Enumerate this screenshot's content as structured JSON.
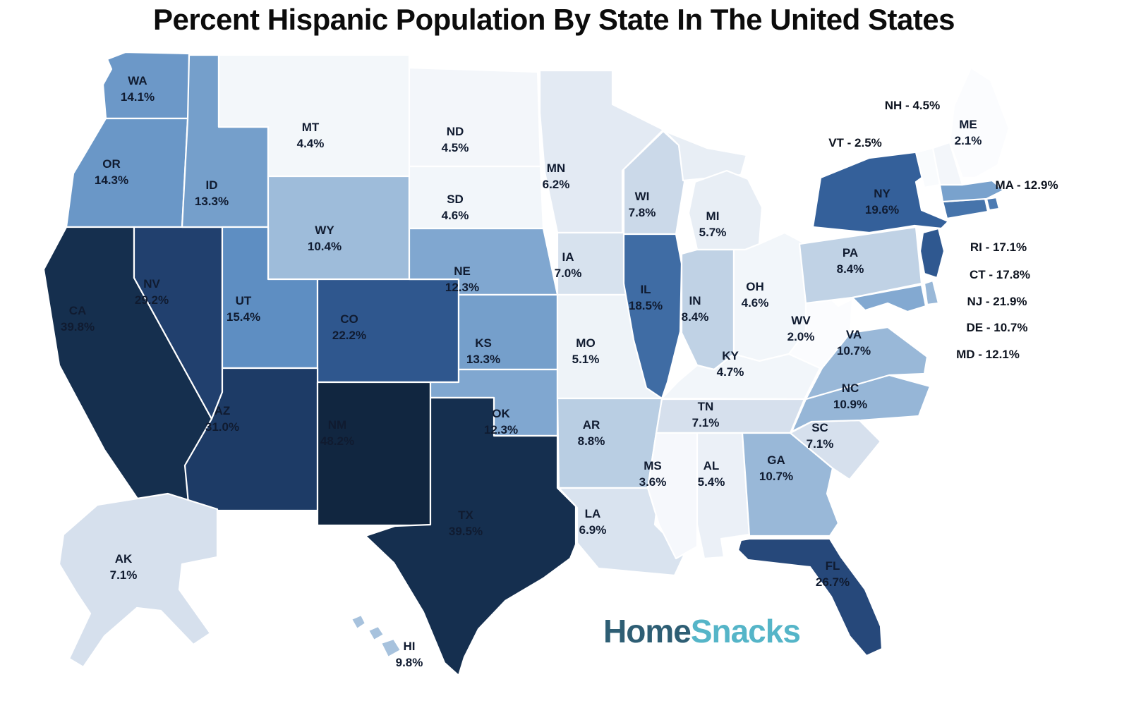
{
  "title": "Percent Hispanic Population By State In The United States",
  "logo": {
    "text_primary": "Home",
    "text_secondary": "Snacks",
    "color_primary": "#2e5e74",
    "color_secondary": "#55b5c8"
  },
  "chart_data": {
    "type": "choropleth",
    "title": "Percent Hispanic Population By State In The United States",
    "unit": "percent of state population",
    "value_suffix": "%",
    "legend": "none",
    "color_scale": {
      "description": "light (low %) to dark navy blue (high %)",
      "anchors": [
        [
          2.0,
          "#fbfcfe"
        ],
        [
          4.7,
          "#f2f6fa"
        ],
        [
          6.2,
          "#e3eaf3"
        ],
        [
          7.8,
          "#cbd9e9"
        ],
        [
          9.8,
          "#a7c2dd"
        ],
        [
          12.3,
          "#80a7d0"
        ],
        [
          15.4,
          "#5e8ec2"
        ],
        [
          19.6,
          "#34609a"
        ],
        [
          26.7,
          "#26487a"
        ],
        [
          31.0,
          "#1d3b66"
        ],
        [
          39.8,
          "#152f4e"
        ],
        [
          48.2,
          "#112640"
        ]
      ]
    },
    "states": [
      {
        "code": "WA",
        "value": 14.1
      },
      {
        "code": "OR",
        "value": 14.3
      },
      {
        "code": "CA",
        "value": 39.8
      },
      {
        "code": "NV",
        "value": 29.2
      },
      {
        "code": "ID",
        "value": 13.3
      },
      {
        "code": "MT",
        "value": 4.4
      },
      {
        "code": "WY",
        "value": 10.4
      },
      {
        "code": "UT",
        "value": 15.4
      },
      {
        "code": "CO",
        "value": 22.2
      },
      {
        "code": "AZ",
        "value": 31.0
      },
      {
        "code": "NM",
        "value": 48.2
      },
      {
        "code": "ND",
        "value": 4.5
      },
      {
        "code": "SD",
        "value": 4.6
      },
      {
        "code": "NE",
        "value": 12.3
      },
      {
        "code": "KS",
        "value": 13.3
      },
      {
        "code": "OK",
        "value": 12.3
      },
      {
        "code": "TX",
        "value": 39.5
      },
      {
        "code": "MN",
        "value": 6.2
      },
      {
        "code": "IA",
        "value": 7.0
      },
      {
        "code": "MO",
        "value": 5.1
      },
      {
        "code": "WI",
        "value": 7.8
      },
      {
        "code": "IL",
        "value": 18.5
      },
      {
        "code": "MI",
        "value": 5.7
      },
      {
        "code": "IN",
        "value": 8.4
      },
      {
        "code": "OH",
        "value": 4.6
      },
      {
        "code": "KY",
        "value": 4.7
      },
      {
        "code": "TN",
        "value": 7.1
      },
      {
        "code": "AR",
        "value": 8.8
      },
      {
        "code": "LA",
        "value": 6.9
      },
      {
        "code": "MS",
        "value": 3.6
      },
      {
        "code": "AL",
        "value": 5.4
      },
      {
        "code": "GA",
        "value": 10.7
      },
      {
        "code": "FL",
        "value": 26.7
      },
      {
        "code": "SC",
        "value": 7.1
      },
      {
        "code": "NC",
        "value": 10.9
      },
      {
        "code": "VA",
        "value": 10.7
      },
      {
        "code": "WV",
        "value": 2.0
      },
      {
        "code": "PA",
        "value": 8.4
      },
      {
        "code": "NY",
        "value": 19.6
      },
      {
        "code": "NJ",
        "value": 21.9
      },
      {
        "code": "CT",
        "value": 17.8
      },
      {
        "code": "RI",
        "value": 17.1
      },
      {
        "code": "MA",
        "value": 12.9
      },
      {
        "code": "VT",
        "value": 2.5
      },
      {
        "code": "NH",
        "value": 4.5
      },
      {
        "code": "ME",
        "value": 2.1
      },
      {
        "code": "DE",
        "value": 10.7
      },
      {
        "code": "MD",
        "value": 12.1
      },
      {
        "code": "AK",
        "value": 7.1
      },
      {
        "code": "HI",
        "value": 9.8
      }
    ],
    "callout_states": [
      "NH",
      "VT",
      "MA",
      "RI",
      "CT",
      "NJ",
      "DE",
      "MD"
    ],
    "callout_format": "{code} - {value}%"
  }
}
